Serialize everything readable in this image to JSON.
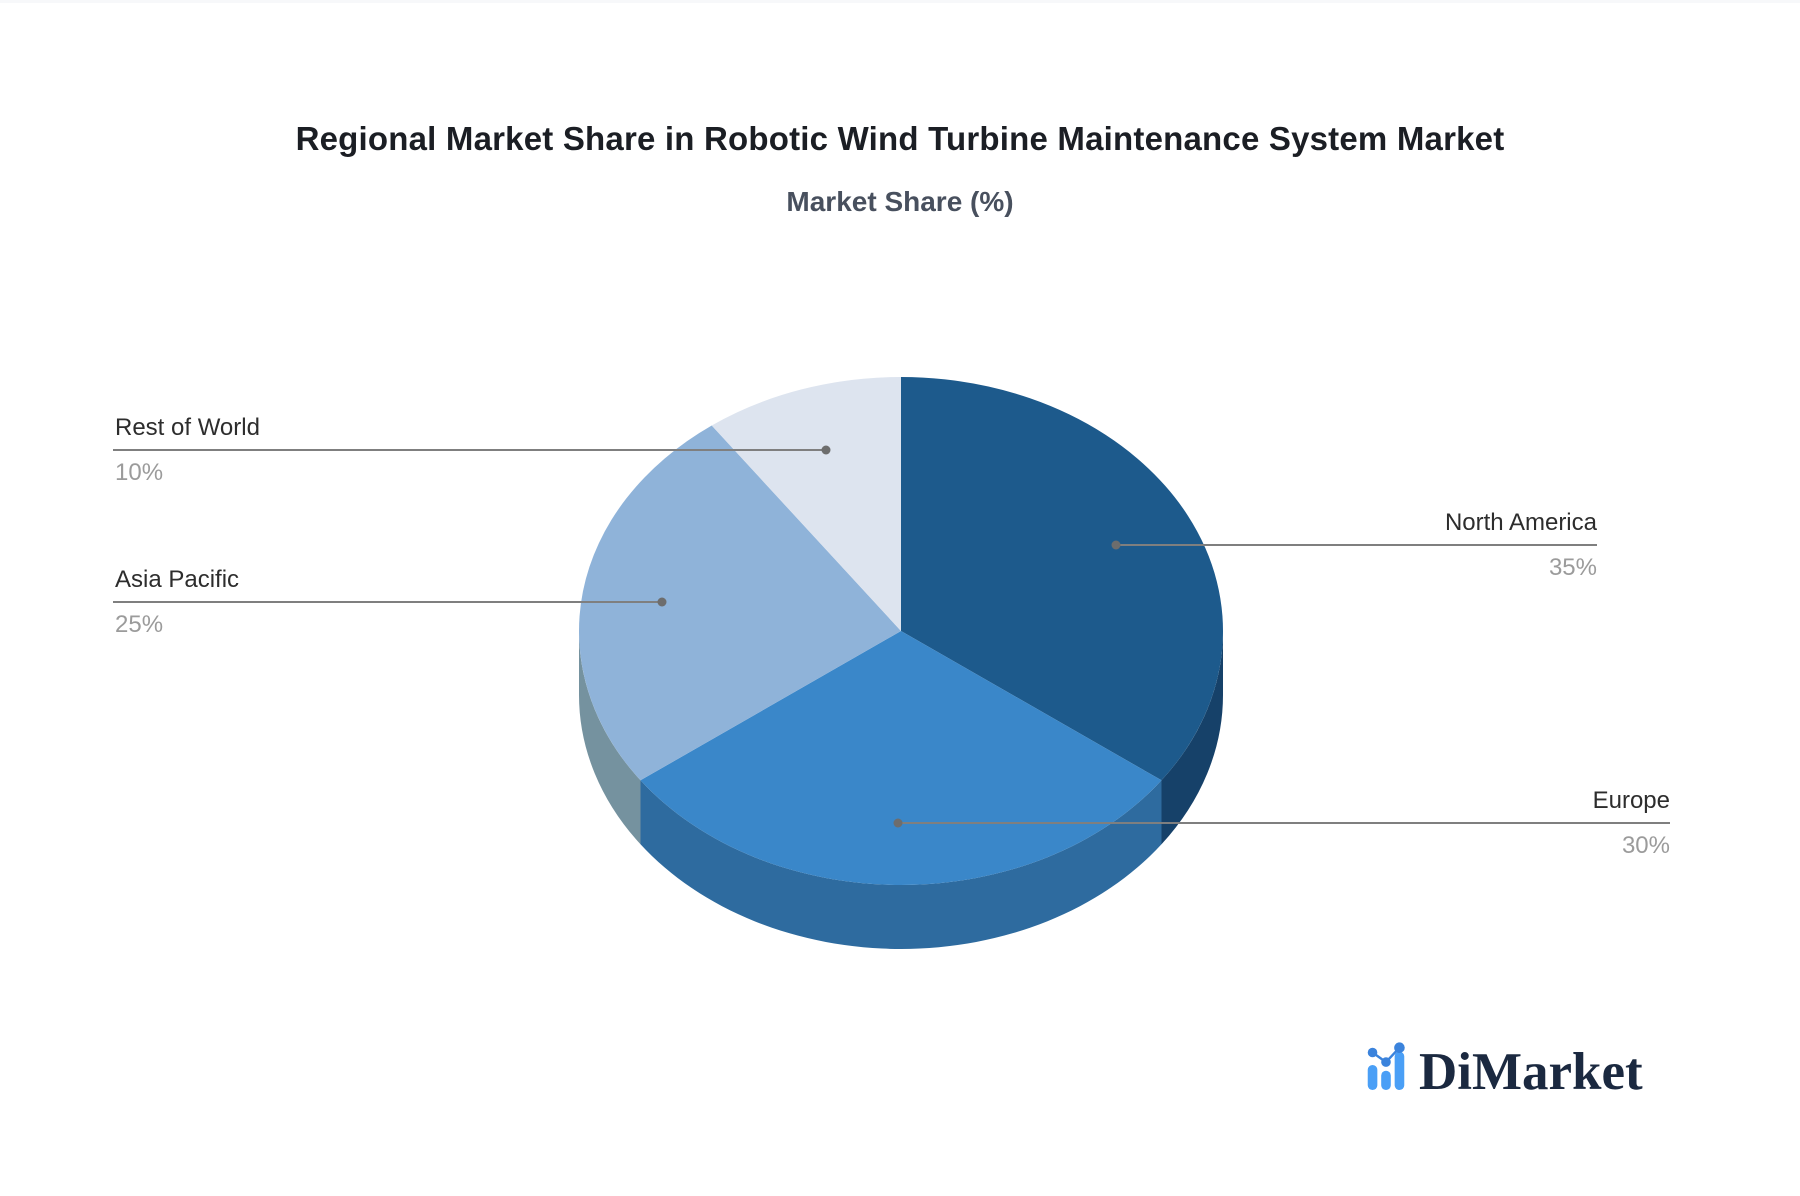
{
  "header": {
    "title": "Regional Market Share in Robotic Wind Turbine Maintenance System Market",
    "subtitle": "Market Share (%)"
  },
  "chart_data": {
    "type": "pie",
    "style": "3d",
    "title": "Regional Market Share in Robotic Wind Turbine Maintenance System Market",
    "subtitle": "Market Share (%)",
    "unit": "%",
    "start_angle_deg": -90,
    "direction": "clockwise",
    "legend": "none",
    "label_style": "connector callouts",
    "slices": [
      {
        "name": "North America",
        "value": 35,
        "percent_label": "35%",
        "color": "#1d5a8c",
        "side_color": "#164169"
      },
      {
        "name": "Europe",
        "value": 30,
        "percent_label": "30%",
        "color": "#3a87c9",
        "side_color": "#2e6b9f"
      },
      {
        "name": "Asia Pacific",
        "value": 25,
        "percent_label": "25%",
        "color": "#8fb3d9",
        "side_color": "#75929f"
      },
      {
        "name": "Rest of World",
        "value": 10,
        "percent_label": "10%",
        "color": "#dde4ef",
        "side_color": "#b9c6d8"
      }
    ]
  },
  "colors": {
    "background": "#ffffff",
    "title": "#1b1e24",
    "subtitle": "#48505e",
    "category_label": "#2d2d2d",
    "percent_label": "#9b9b9b",
    "connector_line": "#7f7f7f",
    "connector_dot": "#6d6d6d"
  },
  "branding": {
    "logo_text": "DiMarket",
    "logo_icon": "bar-line-chart-icon",
    "logo_text_color": "#1b2940",
    "logo_bar_color": "#4a9ff6",
    "logo_dot_color": "#3b83dc"
  }
}
